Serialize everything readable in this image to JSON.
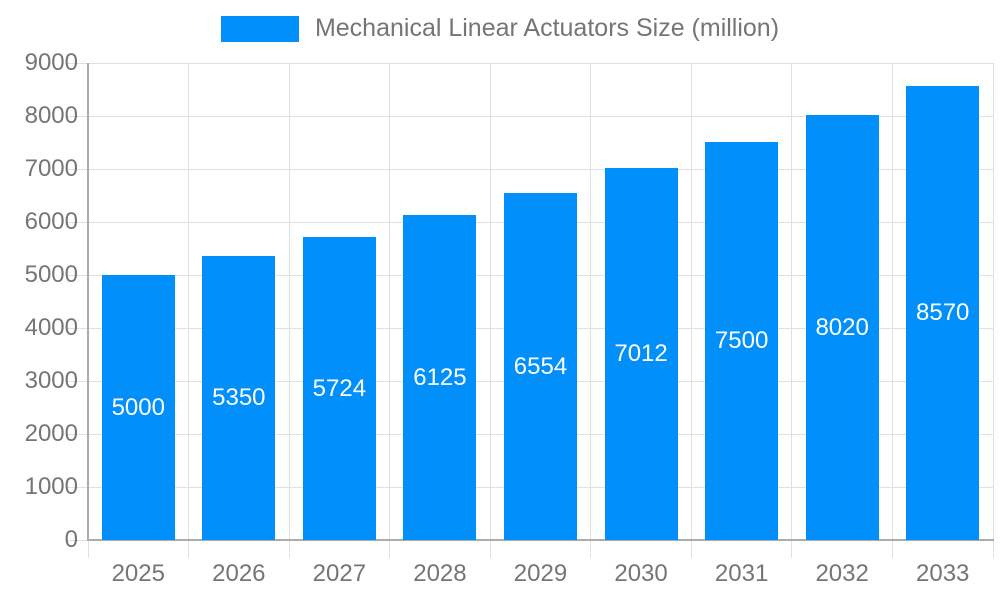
{
  "legend": {
    "label": "Mechanical Linear Actuators Size (million)"
  },
  "chart_data": {
    "type": "bar",
    "title": "Mechanical Linear Actuators Size (million)",
    "categories": [
      "2025",
      "2026",
      "2027",
      "2028",
      "2029",
      "2030",
      "2031",
      "2032",
      "2033"
    ],
    "values": [
      5000,
      5350,
      5724,
      6125,
      6554,
      7012,
      7500,
      8020,
      8570
    ],
    "xlabel": "",
    "ylabel": "",
    "ylim": [
      0,
      9000
    ],
    "yticks": [
      0,
      1000,
      2000,
      3000,
      4000,
      5000,
      6000,
      7000,
      8000,
      9000
    ],
    "grid": true,
    "legend_position": "top",
    "value_labels": "inside-center",
    "colors": {
      "bar": "#008FFB",
      "value_label": "#FFFFFF",
      "axis_label": "#757575",
      "gridline": "#E0E0E0",
      "axis_line": "#ABABAB",
      "background": "#FFFFFF"
    }
  }
}
